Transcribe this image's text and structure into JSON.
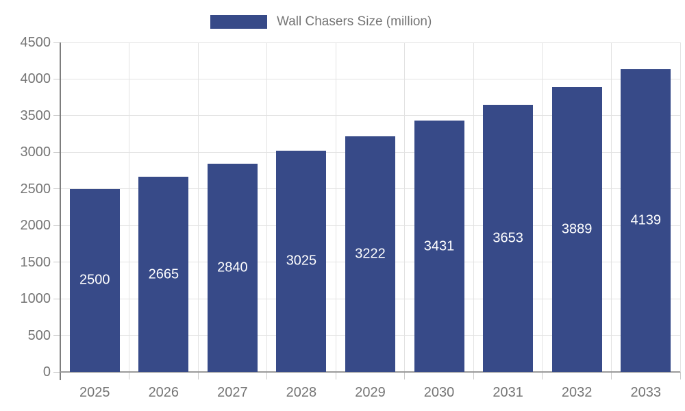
{
  "chart_data": {
    "type": "bar",
    "title": "",
    "legend": "Wall Chasers Size (million)",
    "categories": [
      "2025",
      "2026",
      "2027",
      "2028",
      "2029",
      "2030",
      "2031",
      "2032",
      "2033"
    ],
    "values": [
      2500,
      2665,
      2840,
      3025,
      3222,
      3431,
      3653,
      3889,
      4139
    ],
    "xlabel": "",
    "ylabel": "",
    "ylim": [
      0,
      4500
    ],
    "ytick_step": 500,
    "yticks": [
      0,
      500,
      1000,
      1500,
      2000,
      2500,
      3000,
      3500,
      4000,
      4500
    ],
    "grid": true,
    "legend_position": "top",
    "value_labels": "inside-center"
  },
  "colors": {
    "bar": "#374a88",
    "value_label": "#ffffff",
    "axis_text": "#757575",
    "legend_text": "#757575",
    "gridline": "#e2e2e2",
    "x_axis_line": "#9a9a9a",
    "y_axis_line": "#7d7d7d",
    "tick": "#c9c9c9",
    "background": "#ffffff"
  }
}
